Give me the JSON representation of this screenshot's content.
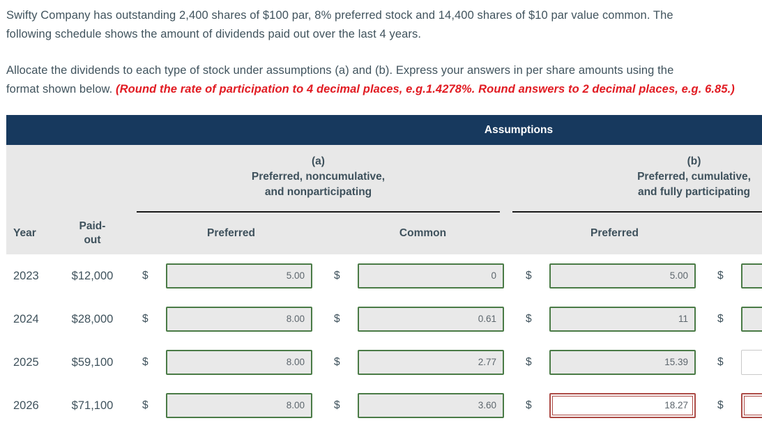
{
  "intro": {
    "para1_line1": "Swifty Company has outstanding 2,400 shares of $100 par, 8% preferred stock and 14,400 shares of $10 par value common. The",
    "para1_line2": "following schedule shows the amount of dividends paid out over the last 4 years.",
    "para2_line1": "Allocate the dividends to each type of stock under assumptions (a) and (b). Express your answers in per share amounts using the",
    "para2_line2_prefix": "format shown below. ",
    "para2_line2_red": "(Round the rate of participation to 4 decimal places, e.g.1.4278%. Round answers to 2 decimal places, e.g. 6.85.)"
  },
  "table": {
    "banner": "Assumptions",
    "currency": "$",
    "group_a": {
      "tag": "(a)",
      "line1": "Preferred, noncumulative,",
      "line2": "and nonparticipating"
    },
    "group_b": {
      "tag": "(b)",
      "line1": "Preferred, cumulative,",
      "line2": "and fully participating"
    },
    "columns": {
      "year": "Year",
      "paid": "Paid-\nout",
      "a_preferred": "Preferred",
      "a_common": "Common",
      "b_preferred": "Preferred"
    },
    "rows": [
      {
        "year": "2023",
        "paid": "$12,000",
        "a_preferred": "5.00",
        "a_common": "0",
        "b_preferred": "5.00",
        "b_common": ""
      },
      {
        "year": "2024",
        "paid": "$28,000",
        "a_preferred": "8.00",
        "a_common": "0.61",
        "b_preferred": "11",
        "b_common": ""
      },
      {
        "year": "2025",
        "paid": "$59,100",
        "a_preferred": "8.00",
        "a_common": "2.77",
        "b_preferred": "15.39",
        "b_common": ""
      },
      {
        "year": "2026",
        "paid": "$71,100",
        "a_preferred": "8.00",
        "a_common": "3.60",
        "b_preferred": "18.27",
        "b_common": ""
      }
    ],
    "input_states": {
      "2023": {
        "a_preferred": "correct",
        "a_common": "correct",
        "b_preferred": "correct",
        "b_common": "correct"
      },
      "2024": {
        "a_preferred": "correct",
        "a_common": "correct",
        "b_preferred": "correct",
        "b_common": "correct"
      },
      "2025": {
        "a_preferred": "correct",
        "a_common": "correct",
        "b_preferred": "correct",
        "b_common": "empty"
      },
      "2026": {
        "a_preferred": "correct",
        "a_common": "correct",
        "b_preferred": "error",
        "b_common": "error"
      }
    }
  },
  "colors": {
    "banner_navy": "#17395e",
    "header_gray": "#e8e8e8",
    "field_gray": "#e9e9e9",
    "correct_green": "#4a7b46",
    "error_red": "#ac4a45",
    "instruction_red": "#e11b22",
    "text_slate": "#40535d"
  }
}
